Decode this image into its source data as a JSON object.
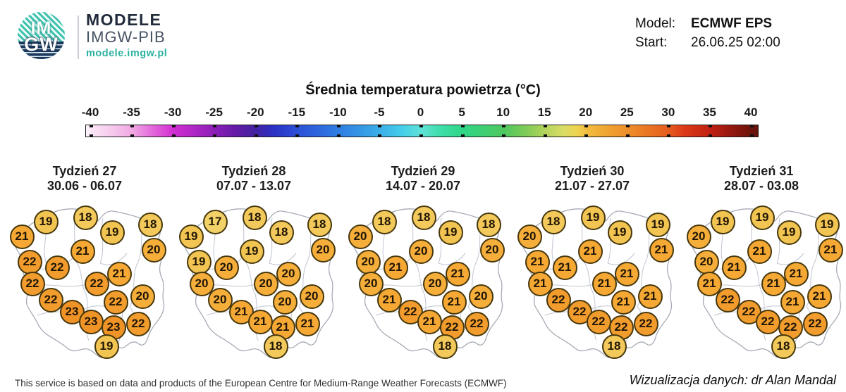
{
  "header": {
    "logo": {
      "initials_top": "IM",
      "initials_bottom": "GW",
      "brand": "MODELE",
      "brand_sub": "IMGW-PIB",
      "url": "modele.imgw.pl",
      "teal": "#43c2b0",
      "navy": "#1d3a5e"
    },
    "model_label": "Model:",
    "model_value": "ECMWF EPS",
    "start_label": "Start:",
    "start_value": "26.06.25 02:00"
  },
  "colorbar": {
    "title": "Średnia temperatura powietrza (°C)",
    "min": -40,
    "max": 40,
    "ticks": [
      -40,
      -35,
      -30,
      -25,
      -20,
      -15,
      -10,
      -5,
      0,
      5,
      10,
      15,
      20,
      25,
      30,
      35,
      40
    ],
    "gradient": [
      [
        "0%",
        "#FDF3FB"
      ],
      [
        "1%",
        "#FAE4F6"
      ],
      [
        "4%",
        "#F6C8EC"
      ],
      [
        "7%",
        "#F0A6E3"
      ],
      [
        "10%",
        "#E366DB"
      ],
      [
        "13%",
        "#D22ED2"
      ],
      [
        "16%",
        "#B026C6"
      ],
      [
        "19%",
        "#8D1FB7"
      ],
      [
        "22%",
        "#671CA9"
      ],
      [
        "25%",
        "#45219F"
      ],
      [
        "28%",
        "#2B31C5"
      ],
      [
        "31.5%",
        "#2C50D8"
      ],
      [
        "37.7%",
        "#2F7EE2"
      ],
      [
        "43.8%",
        "#3AAFE8"
      ],
      [
        "47%",
        "#45CEEA"
      ],
      [
        "50%",
        "#5FE2D5"
      ],
      [
        "53%",
        "#3CDDA6"
      ],
      [
        "56.2%",
        "#2FD687"
      ],
      [
        "62.3%",
        "#4FC75F"
      ],
      [
        "65.5%",
        "#81CB58"
      ],
      [
        "68.4%",
        "#B4D45C"
      ],
      [
        "71%",
        "#D9DC66"
      ],
      [
        "73%",
        "#EDD44F"
      ],
      [
        "74.6%",
        "#F2BC3F"
      ],
      [
        "77.5%",
        "#F0A432"
      ],
      [
        "80.7%",
        "#EE8E2A"
      ],
      [
        "84%",
        "#EA7322"
      ],
      [
        "86.9%",
        "#E55A1E"
      ],
      [
        "89%",
        "#DC3A18"
      ],
      [
        "93%",
        "#C02013"
      ],
      [
        "96%",
        "#951810"
      ],
      [
        "99%",
        "#6B140C"
      ],
      [
        "100%",
        "#64130B"
      ]
    ]
  },
  "temp_colors": {
    "17": "#F1D168",
    "18": "#F2C95A",
    "19": "#F2C452",
    "20": "#F6AE3B",
    "21": "#F5A833",
    "22": "#F19C2C",
    "23": "#EF9327"
  },
  "station_positions": [
    [
      65,
      29
    ],
    [
      121,
      23
    ],
    [
      31,
      50
    ],
    [
      159,
      44
    ],
    [
      213,
      33
    ],
    [
      218,
      69
    ],
    [
      117,
      71
    ],
    [
      42,
      86
    ],
    [
      81,
      94
    ],
    [
      169,
      103
    ],
    [
      137,
      117
    ],
    [
      46,
      117
    ],
    [
      202,
      135
    ],
    [
      72,
      140
    ],
    [
      164,
      143
    ],
    [
      102,
      157
    ],
    [
      129,
      171
    ],
    [
      161,
      179
    ],
    [
      196,
      174
    ],
    [
      151,
      206
    ]
  ],
  "weeks": [
    {
      "title": "Tydzień 27",
      "range": "30.06 - 06.07",
      "values": [
        19,
        18,
        21,
        19,
        18,
        20,
        21,
        22,
        22,
        21,
        22,
        22,
        20,
        22,
        22,
        23,
        23,
        23,
        22,
        19
      ]
    },
    {
      "title": "Tydzień 28",
      "range": "07.07 - 13.07",
      "values": [
        17,
        18,
        19,
        18,
        18,
        20,
        19,
        19,
        20,
        20,
        20,
        20,
        20,
        20,
        20,
        21,
        21,
        21,
        21,
        18
      ]
    },
    {
      "title": "Tydzień 29",
      "range": "14.07 - 20.07",
      "values": [
        18,
        18,
        20,
        19,
        18,
        20,
        20,
        20,
        21,
        21,
        20,
        20,
        20,
        21,
        21,
        22,
        21,
        22,
        22,
        18
      ]
    },
    {
      "title": "Tydzień 30",
      "range": "21.07 - 27.07",
      "values": [
        18,
        19,
        20,
        19,
        19,
        21,
        21,
        21,
        21,
        21,
        21,
        21,
        21,
        22,
        21,
        22,
        22,
        22,
        22,
        18
      ]
    },
    {
      "title": "Tydzień 31",
      "range": "28.07 - 03.08",
      "values": [
        19,
        19,
        20,
        19,
        19,
        21,
        21,
        20,
        21,
        21,
        21,
        21,
        21,
        22,
        21,
        22,
        22,
        22,
        22,
        18
      ]
    }
  ],
  "chart_data": {
    "type": "heatmap",
    "title": "Średnia temperatura powietrza (°C)",
    "legend": {
      "min": -40,
      "max": 40,
      "step": 5,
      "position": "top"
    },
    "categories": [
      "Tydzień 27 (30.06 - 06.07)",
      "Tydzień 28 (07.07 - 13.07)",
      "Tydzień 29 (14.07 - 20.07)",
      "Tydzień 30 (21.07 - 27.07)",
      "Tydzień 31 (28.07 - 03.08)"
    ],
    "series": [
      {
        "name": "Tydzień 27",
        "values": [
          19,
          18,
          21,
          19,
          18,
          20,
          21,
          22,
          22,
          21,
          22,
          22,
          20,
          22,
          22,
          23,
          23,
          23,
          22,
          19
        ]
      },
      {
        "name": "Tydzień 28",
        "values": [
          17,
          18,
          19,
          18,
          18,
          20,
          19,
          19,
          20,
          20,
          20,
          20,
          20,
          20,
          20,
          21,
          21,
          21,
          21,
          18
        ]
      },
      {
        "name": "Tydzień 29",
        "values": [
          18,
          18,
          20,
          19,
          18,
          20,
          20,
          20,
          21,
          21,
          20,
          20,
          20,
          21,
          21,
          22,
          21,
          22,
          22,
          18
        ]
      },
      {
        "name": "Tydzień 30",
        "values": [
          18,
          19,
          20,
          19,
          19,
          21,
          21,
          21,
          21,
          21,
          21,
          21,
          21,
          22,
          21,
          22,
          22,
          22,
          22,
          18
        ]
      },
      {
        "name": "Tydzień 31",
        "values": [
          19,
          19,
          20,
          19,
          19,
          21,
          21,
          20,
          21,
          21,
          21,
          21,
          21,
          22,
          21,
          22,
          22,
          22,
          22,
          18
        ]
      }
    ]
  },
  "footer": {
    "left": "This service is based on data and products of the European Centre for Medium-Range Weather Forecasts (ECMWF)",
    "right": "Wizualizacja danych: dr Alan Mandal"
  }
}
